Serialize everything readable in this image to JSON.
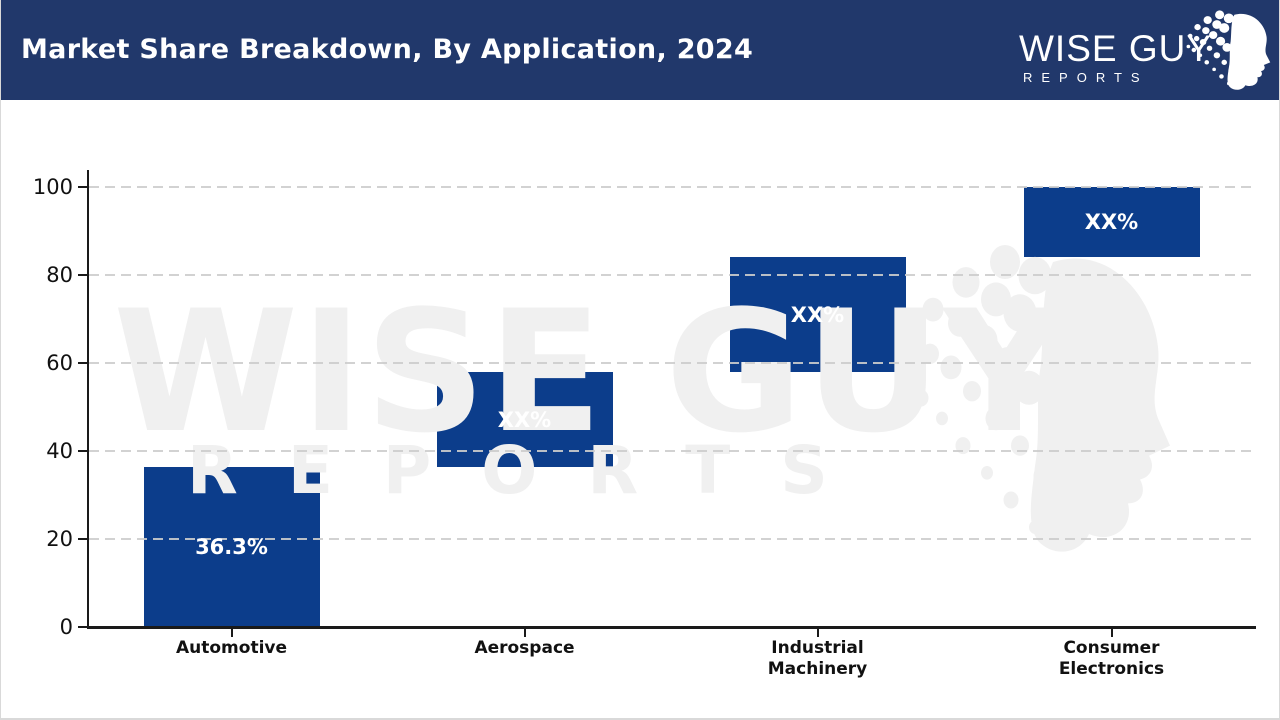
{
  "header": {
    "title": "Market Share Breakdown, By Application, 2024",
    "logo": {
      "name": "WISE GUY",
      "sub": "REPORTS"
    }
  },
  "watermark": {
    "line1": "WISE GUY",
    "line2": "REPORTS"
  },
  "colors": {
    "header_bg": "#21386b",
    "bar_blue": "#0c3d8b",
    "bar_label": "#ffffff",
    "watermark_gray": "#f0f0f0",
    "axis_black": "#1a1a1a",
    "grid_gray": "#cdcdcd"
  },
  "chart_data": {
    "type": "bar",
    "variant": "waterfall",
    "title": "Market Share Breakdown, By Application, 2024",
    "categories": [
      "Automotive",
      "Aerospace",
      "Industrial Machinery",
      "Consumer Electronics"
    ],
    "segments": [
      {
        "category": "Automotive",
        "start": 0,
        "end": 36.3,
        "value": 36.3,
        "label": "36.3%"
      },
      {
        "category": "Aerospace",
        "start": 36.3,
        "end": 58,
        "value": 21.7,
        "label": "XX%"
      },
      {
        "category": "Industrial Machinery",
        "start": 58,
        "end": 84,
        "value": 26,
        "label": "XX%"
      },
      {
        "category": "Consumer Electronics",
        "start": 84,
        "end": 100,
        "value": 16,
        "label": "XX%"
      }
    ],
    "yticks": [
      0,
      20,
      40,
      60,
      80,
      100
    ],
    "ylim": [
      0,
      104
    ],
    "xlabel": "",
    "ylabel": "",
    "grid": "dashed-horizontal",
    "legend": "none",
    "bar_value_unit": "%"
  }
}
